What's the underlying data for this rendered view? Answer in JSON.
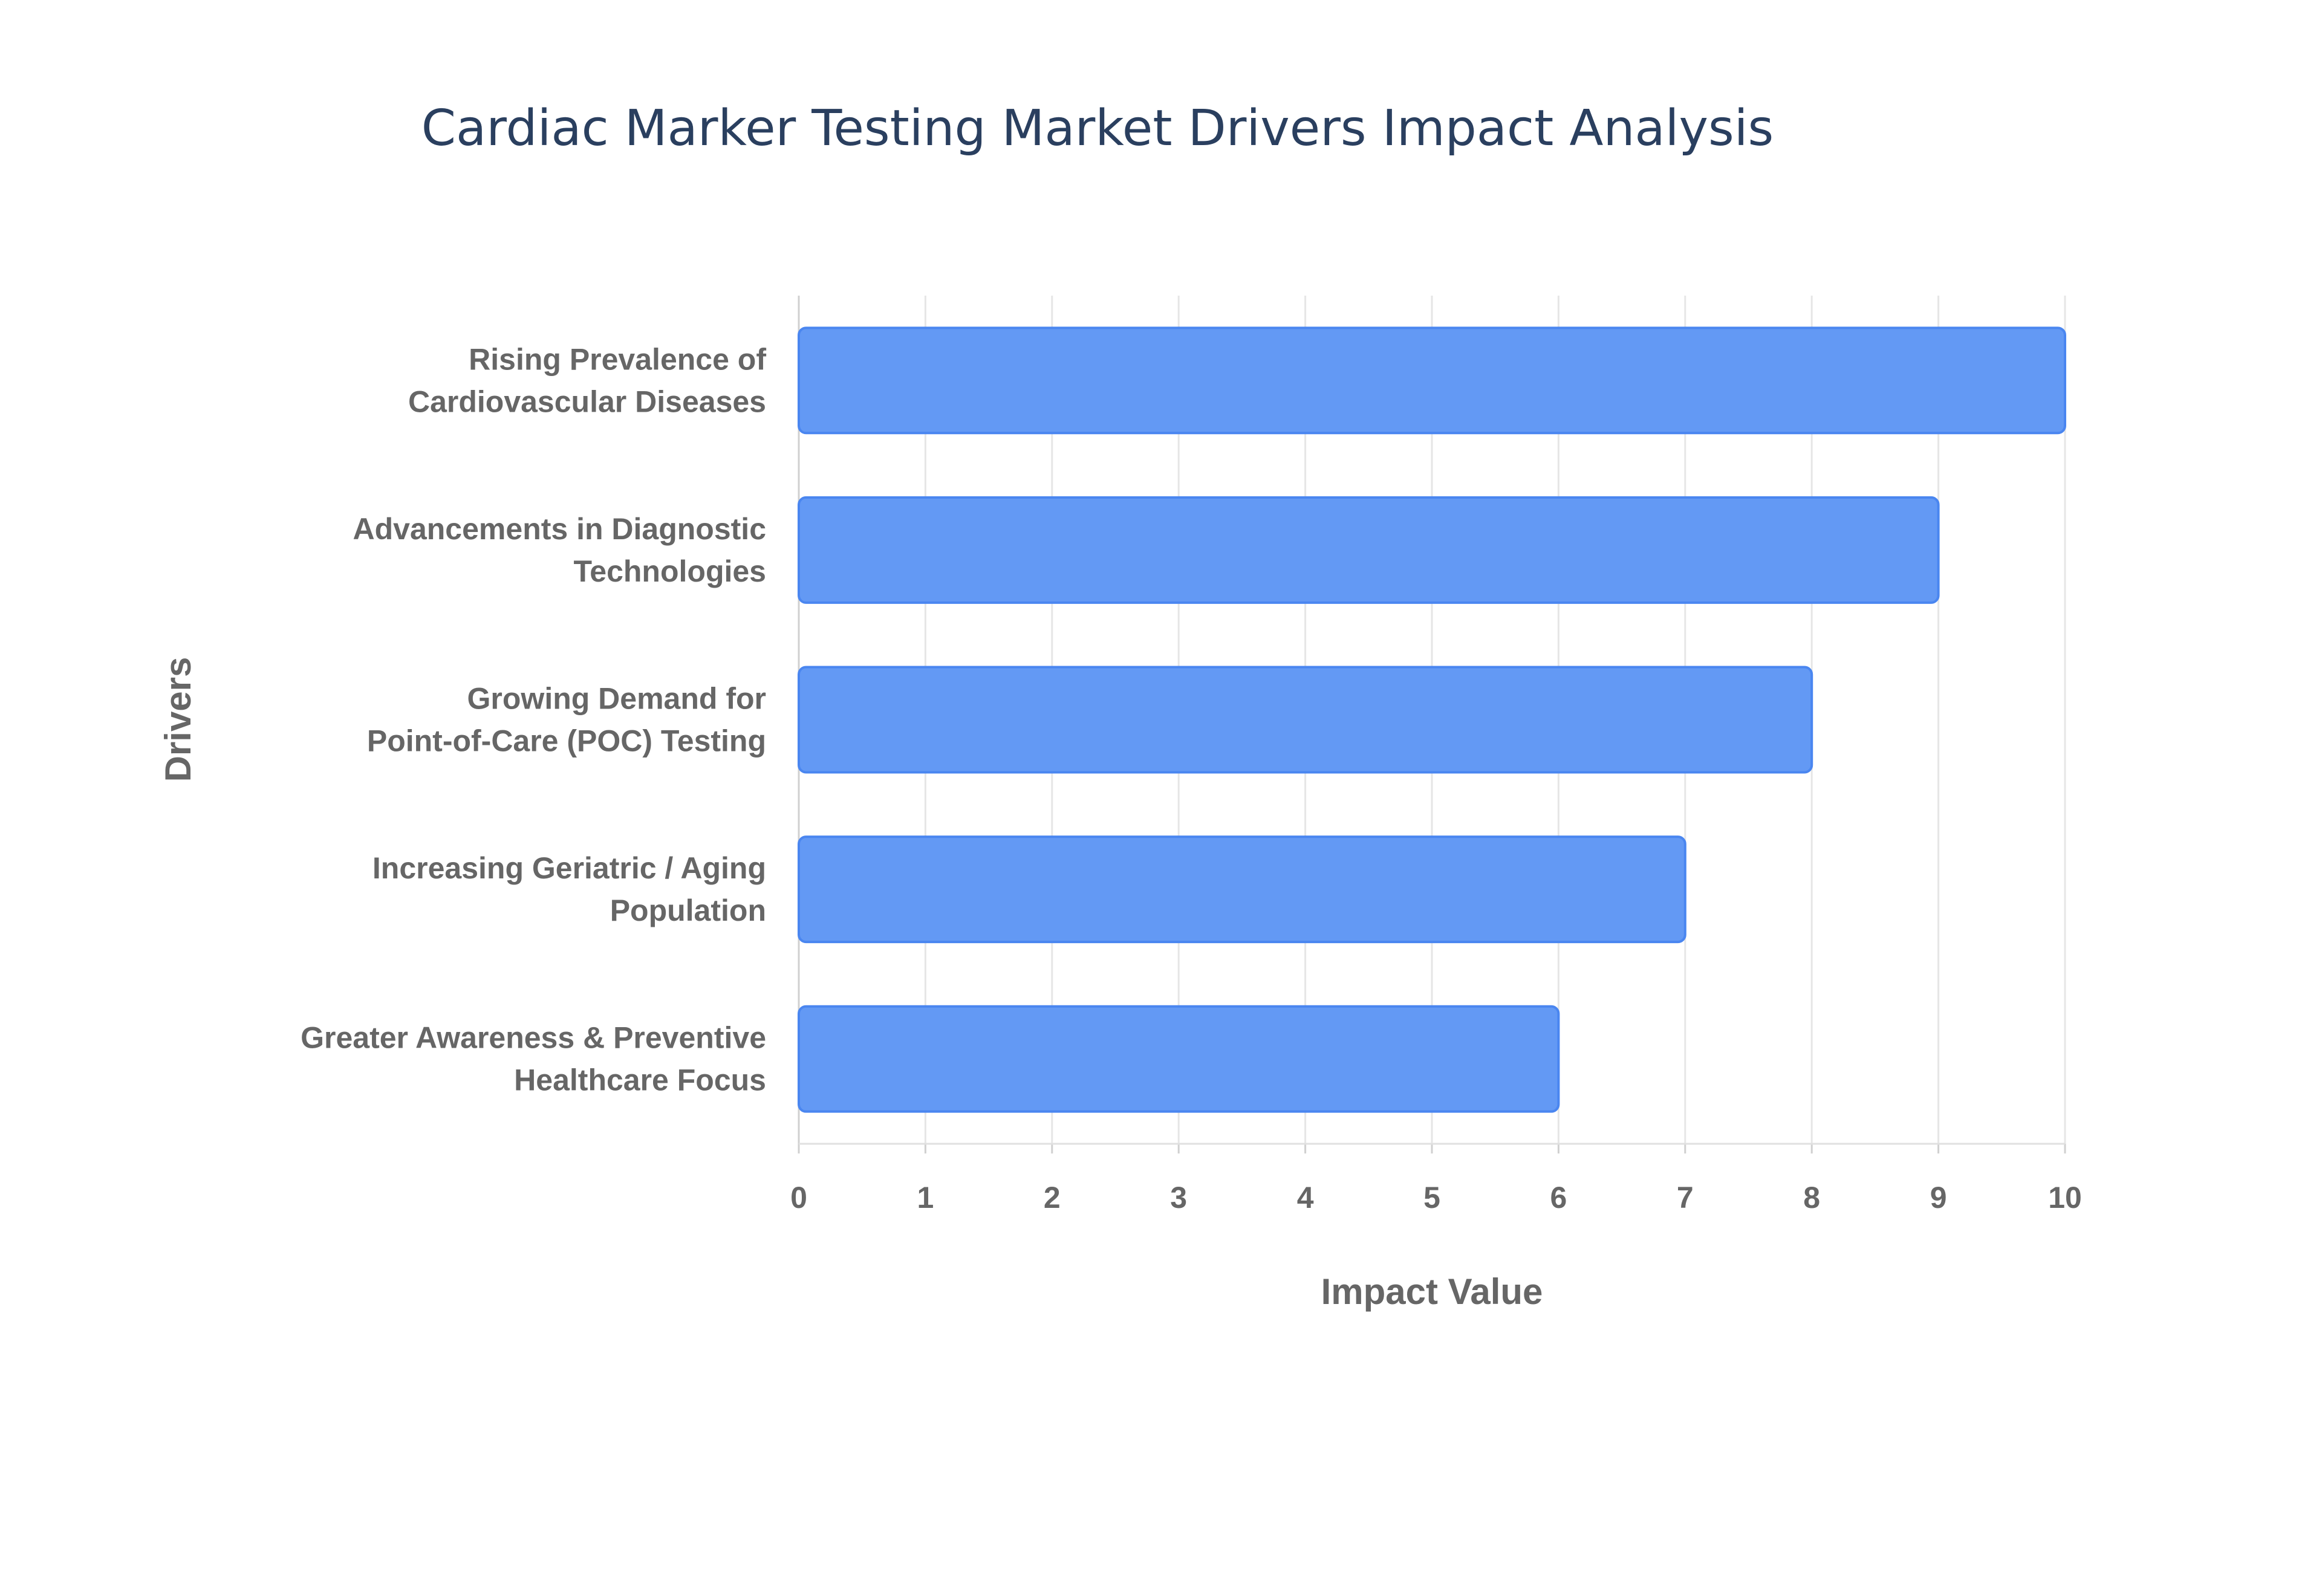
{
  "chart_data": {
    "type": "bar",
    "orientation": "horizontal",
    "title": "Cardiac Marker Testing Market Drivers Impact Analysis",
    "xlabel": "Impact Value",
    "ylabel": "Drivers",
    "categories": [
      [
        "Rising Prevalence of",
        "Cardiovascular Diseases"
      ],
      [
        "Advancements in Diagnostic",
        "Technologies"
      ],
      [
        "Growing Demand for",
        "Point-of-Care (POC) Testing"
      ],
      [
        "Increasing Geriatric / Aging",
        "Population"
      ],
      [
        "Greater Awareness & Preventive",
        "Healthcare Focus"
      ]
    ],
    "values": [
      10,
      9,
      8,
      7,
      6
    ],
    "xlim": [
      0,
      10
    ],
    "xticks": [
      "0",
      "1",
      "2",
      "3",
      "4",
      "5",
      "6",
      "7",
      "8",
      "9",
      "10"
    ],
    "grid": true,
    "bar_color": "#6399f4",
    "bar_border_color": "#4a86f0"
  }
}
